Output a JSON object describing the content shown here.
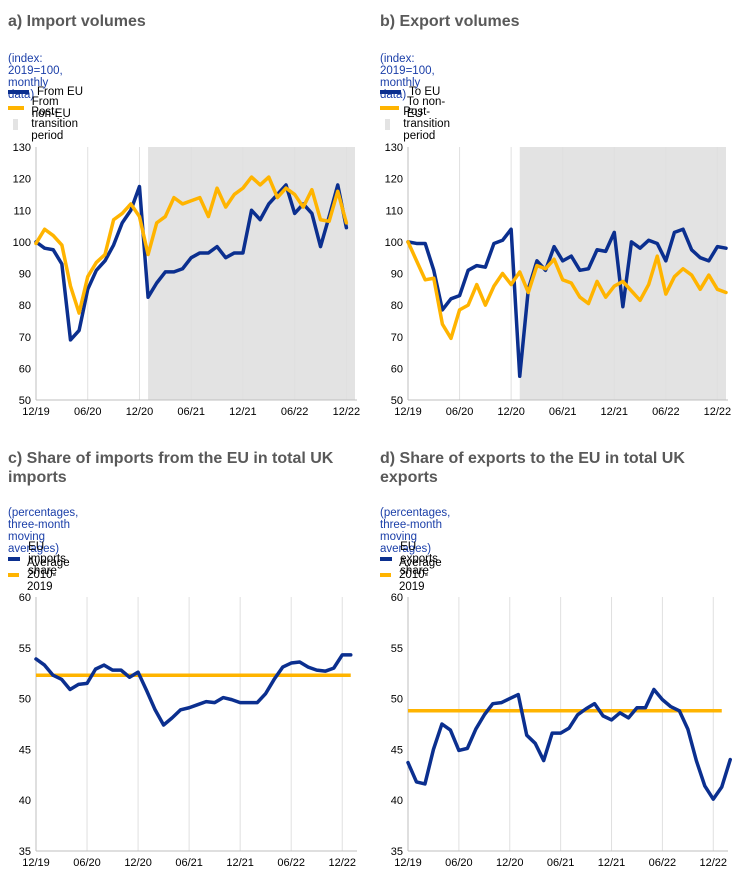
{
  "colors": {
    "blue": "#0b2f8f",
    "yellow": "#ffb400",
    "shade": "#e3e3e3",
    "subtitle": "#1a3ea8",
    "title": "#595959"
  },
  "chart_data": [
    {
      "id": "a",
      "type": "line",
      "title": "a) Import volumes",
      "subtitle": "(index: 2019=100, monthly data)",
      "ylim": [
        50,
        130
      ],
      "yticks": [
        "130",
        "120",
        "110",
        "100",
        "90",
        "80",
        "70",
        "60",
        "50"
      ],
      "xticks": [
        "12/19",
        "06/20",
        "12/20",
        "06/21",
        "12/21",
        "06/22",
        "12/22"
      ],
      "shaded_label": "Post-transition period",
      "shaded_range": [
        13,
        37
      ],
      "series": [
        {
          "name": "From EU",
          "color": "#0b2f8f",
          "values": [
            100,
            98,
            97.5,
            93,
            69,
            72,
            85,
            91,
            94,
            99,
            106,
            110,
            117.5,
            82.5,
            87,
            90.5,
            90.5,
            91.5,
            95,
            96.5,
            96.5,
            98.5,
            95,
            96.5,
            96.5,
            110,
            107,
            112,
            115,
            118,
            109,
            112,
            109,
            98.5,
            108,
            118,
            104.5
          ]
        },
        {
          "name": "From non-EU",
          "color": "#ffb400",
          "values": [
            99.5,
            104,
            102,
            99,
            86,
            77.5,
            89,
            93.5,
            96,
            107,
            109,
            112,
            108,
            96,
            106,
            108,
            114,
            112,
            113,
            114,
            108,
            117,
            111,
            115,
            117,
            120.5,
            118,
            120.5,
            114,
            117,
            115,
            111,
            116.5,
            107,
            106.5,
            116,
            106
          ]
        }
      ]
    },
    {
      "id": "b",
      "type": "line",
      "title": "b) Export volumes",
      "subtitle": "(index: 2019=100, monthly data)",
      "ylim": [
        50,
        130
      ],
      "yticks": [
        "130",
        "120",
        "110",
        "100",
        "90",
        "80",
        "70",
        "60",
        "50"
      ],
      "xticks": [
        "12/19",
        "06/20",
        "12/20",
        "06/21",
        "12/21",
        "06/22",
        "12/22"
      ],
      "shaded_label": "Post-transition period",
      "shaded_range": [
        13,
        37
      ],
      "series": [
        {
          "name": "To EU",
          "color": "#0b2f8f",
          "values": [
            100,
            99.5,
            99.5,
            91,
            78.5,
            82,
            83,
            91,
            92.5,
            92,
            99.5,
            100.5,
            104,
            57.5,
            85,
            94,
            91,
            98.5,
            94,
            95.5,
            91,
            91.5,
            97.5,
            97,
            103,
            79.5,
            100,
            98,
            100.5,
            99.5,
            94,
            103,
            104,
            97.5,
            95,
            94,
            98.5,
            98
          ]
        },
        {
          "name": "To non-EU",
          "color": "#ffb400",
          "values": [
            100,
            94,
            88,
            88.5,
            74,
            69.5,
            78.5,
            80,
            86.5,
            80,
            86,
            90,
            86.5,
            90.5,
            84,
            92.5,
            91.5,
            94.5,
            88,
            87,
            82.5,
            80.5,
            87.5,
            82.5,
            86,
            87.5,
            84.5,
            81.5,
            86.5,
            95.5,
            83.5,
            89,
            91.5,
            89.5,
            85,
            89.5,
            85,
            84
          ]
        }
      ]
    },
    {
      "id": "c",
      "type": "line",
      "title": "c) Share of imports from the EU in total UK imports",
      "subtitle": "(percentages, three-month moving averages)",
      "ylim": [
        35,
        60
      ],
      "yticks": [
        "60",
        "55",
        "50",
        "45",
        "40",
        "35"
      ],
      "xticks": [
        "12/19",
        "06/20",
        "12/20",
        "06/21",
        "12/21",
        "06/22",
        "12/22"
      ],
      "series": [
        {
          "name": "EU imports share",
          "color": "#0b2f8f",
          "values": [
            53.9,
            53.3,
            52.3,
            51.9,
            50.9,
            51.4,
            51.5,
            52.9,
            53.3,
            52.8,
            52.8,
            52.1,
            52.6,
            50.8,
            48.9,
            47.4,
            48.1,
            48.9,
            49.1,
            49.4,
            49.7,
            49.6,
            50.1,
            49.9,
            49.6,
            49.6,
            49.6,
            50.5,
            51.9,
            53.1,
            53.5,
            53.6,
            53.1,
            52.8,
            52.7,
            53.0,
            54.3,
            54.3
          ]
        },
        {
          "name": "Average 2010-2019",
          "color": "#ffb400",
          "constant": 52.3
        }
      ]
    },
    {
      "id": "d",
      "type": "line",
      "title": "d) Share of exports to the EU in total UK exports",
      "subtitle": "(percentages, three-month moving averages)",
      "ylim": [
        35,
        60
      ],
      "yticks": [
        "60",
        "55",
        "50",
        "45",
        "40",
        "35"
      ],
      "xticks": [
        "12/19",
        "06/20",
        "12/20",
        "06/21",
        "12/21",
        "06/22",
        "12/22"
      ],
      "series": [
        {
          "name": "EU exports share",
          "color": "#0b2f8f",
          "values": [
            43.7,
            41.8,
            41.6,
            45.0,
            47.5,
            46.9,
            44.9,
            45.1,
            47.0,
            48.4,
            49.5,
            49.6,
            50.0,
            50.4,
            46.4,
            45.6,
            43.9,
            46.6,
            46.6,
            47.1,
            48.4,
            49.0,
            49.5,
            48.3,
            47.9,
            48.6,
            48.1,
            49.1,
            49.1,
            50.9,
            49.9,
            49.2,
            48.8,
            47.0,
            43.9,
            41.4,
            40.1,
            41.3,
            44.0
          ]
        },
        {
          "name": "Average 2010-2019",
          "color": "#ffb400",
          "constant": 48.8
        }
      ]
    }
  ]
}
